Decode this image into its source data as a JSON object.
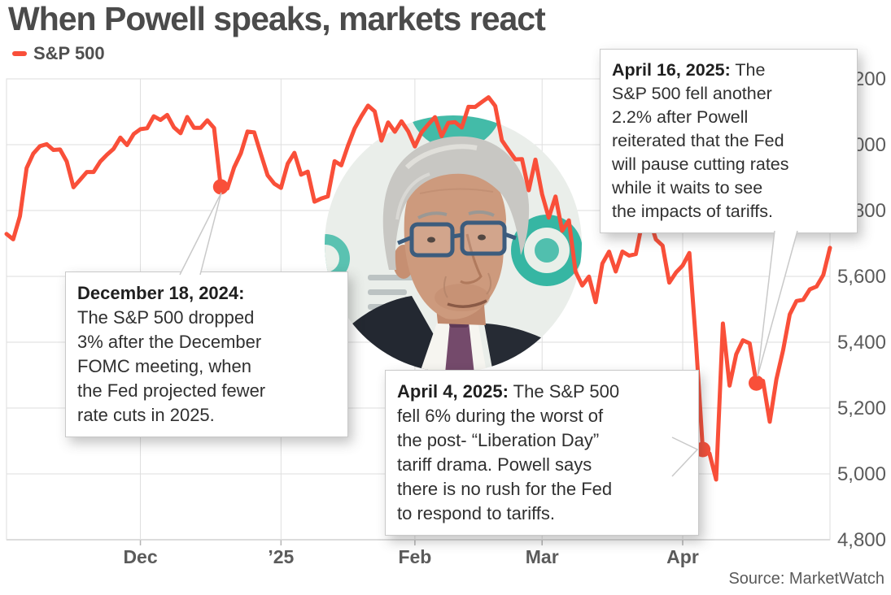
{
  "header": {
    "title": "When Powell speaks, markets react",
    "legend_label": "S&P 500"
  },
  "footer": {
    "source": "Source: MarketWatch"
  },
  "photo": {
    "description": "Jerome Powell at a press conference, circular crop"
  },
  "callouts": {
    "dec18": {
      "lead": "December 18, 2024:",
      "body": "The S&P 500 dropped\n3% after the December\nFOMC meeting, when\nthe Fed projected fewer\nrate cuts in 2025."
    },
    "apr16": {
      "lead": "April 16, 2025:",
      "body": " The\nS&P 500 fell another\n2.2% after Powell\nreiterated that the Fed\nwill pause cutting rates\nwhile it waits to see\nthe impacts of tariffs."
    },
    "apr4": {
      "lead": "April 4, 2025:",
      "body": " The S&P 500\nfell 6% during the worst of\nthe post- “Liberation Day”\ntariff drama. Powell says\nthere is no rush for the Fed\nto respond to tariffs."
    }
  },
  "colors": {
    "line": "#f94f39",
    "grid": "#dedede",
    "axis": "#b4b4b4",
    "text": "#5b5b5b",
    "title": "#4b4b4b",
    "callout_border": "#c9c9c9"
  },
  "chart_data": {
    "type": "line",
    "title": "When Powell speaks, markets react",
    "xlabel": "",
    "ylabel": "",
    "ylim": [
      4800,
      6200
    ],
    "grid": true,
    "legend_position": "top-left",
    "y_ticks": [
      {
        "value": 6200,
        "label": "6,200"
      },
      {
        "value": 6000,
        "label": "6,000"
      },
      {
        "value": 5800,
        "label": "5,800"
      },
      {
        "value": 5600,
        "label": "5,600"
      },
      {
        "value": 5400,
        "label": "5,400"
      },
      {
        "value": 5200,
        "label": "5,200"
      },
      {
        "value": 5000,
        "label": "5,000"
      },
      {
        "value": 4800,
        "label": "4,800"
      }
    ],
    "x_ticks": [
      {
        "index": 20,
        "label": "Dec"
      },
      {
        "index": 41,
        "label": "’25"
      },
      {
        "index": 61,
        "label": "Feb"
      },
      {
        "index": 80,
        "label": "Mar"
      },
      {
        "index": 101,
        "label": "Apr"
      }
    ],
    "series": [
      {
        "name": "S&P 500",
        "color": "#f94f39",
        "values": [
          5728.8,
          5712.7,
          5782.8,
          5929.0,
          5973.1,
          5995.5,
          6001.4,
          5984.0,
          5985.4,
          5949.2,
          5870.6,
          5893.6,
          5917.0,
          5917.1,
          5948.7,
          5969.3,
          5987.4,
          6021.6,
          5998.7,
          6032.4,
          6047.2,
          6049.9,
          6086.5,
          6075.1,
          6090.3,
          6052.9,
          6034.9,
          6084.2,
          6051.3,
          6051.1,
          6074.1,
          6050.6,
          5872.2,
          5867.1,
          5930.9,
          5974.1,
          6040.0,
          6037.6,
          5970.8,
          5906.9,
          5881.6,
          5868.6,
          5942.5,
          5975.4,
          5909.0,
          5918.3,
          5827.0,
          5836.2,
          5842.9,
          5949.9,
          5937.3,
          5996.7,
          6049.2,
          6086.4,
          6118.7,
          6101.2,
          6012.3,
          6067.7,
          6039.3,
          6071.2,
          6040.5,
          5994.6,
          6037.9,
          6061.5,
          6083.6,
          6026.0,
          6066.4,
          6068.5,
          6052.0,
          6115.1,
          6114.6,
          6129.6,
          6144.2,
          6117.5,
          6013.1,
          5983.3,
          5955.3,
          5956.1,
          5861.6,
          5954.5,
          5849.7,
          5778.2,
          5842.6,
          5738.5,
          5770.2,
          5614.6,
          5572.1,
          5599.3,
          5521.5,
          5638.9,
          5675.1,
          5614.7,
          5675.3,
          5662.9,
          5667.6,
          5767.6,
          5776.7,
          5712.2,
          5693.3,
          5580.9,
          5611.9,
          5633.1,
          5671.0,
          5396.5,
          5074.1,
          5062.3,
          4982.8,
          5456.9,
          5268.1,
          5363.4,
          5406.0,
          5396.6,
          5275.7,
          5282.7,
          5158.2,
          5287.8,
          5375.9,
          5484.8,
          5525.2,
          5528.8,
          5560.8,
          5569.1,
          5604.1,
          5686.7
        ]
      }
    ],
    "markers": [
      {
        "index": 32,
        "date": "December 18, 2024",
        "value": 5872,
        "note": "dropped 3% after FOMC meeting"
      },
      {
        "index": 104,
        "date": "April 4, 2025",
        "value": 5074,
        "note": "fell 6% in post-Liberation Day tariff drama"
      },
      {
        "index": 112,
        "date": "April 16, 2025",
        "value": 5276,
        "note": "fell another 2.2% after Powell remarks"
      }
    ]
  }
}
